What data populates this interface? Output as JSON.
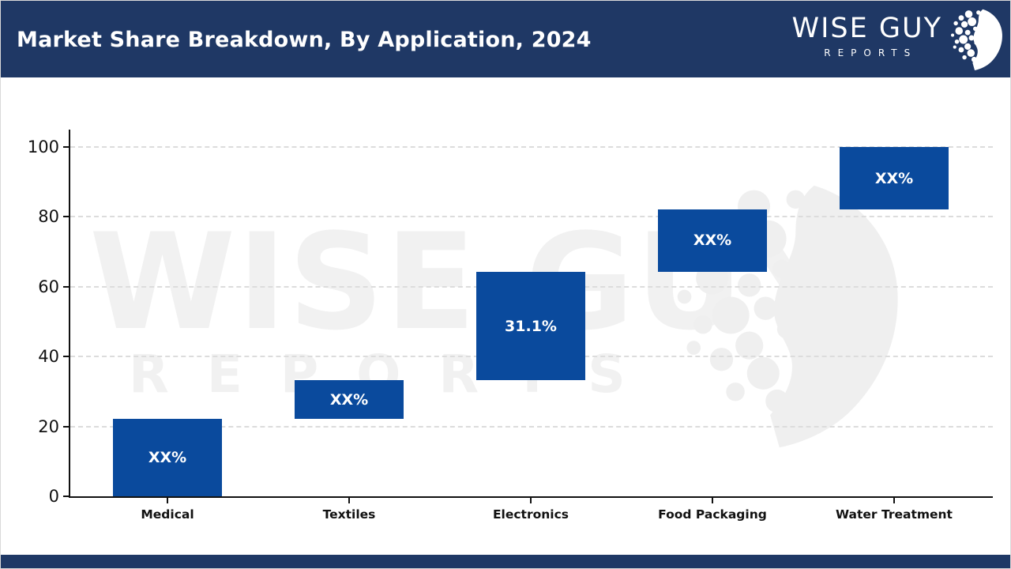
{
  "header": {
    "title": "Market Share Breakdown, By Application, 2024",
    "logo": {
      "line1": "WISE GUY",
      "line2": "REPORTS"
    }
  },
  "watermark": {
    "line1": "WISE GUY",
    "line2": "REPORTS"
  },
  "chart_data": {
    "type": "bar",
    "subtype": "floating-segment-waterfall",
    "title": "Market Share Breakdown, By Application, 2024",
    "categories": [
      "Medical",
      "Textiles",
      "Electronics",
      "Food Packaging",
      "Water Treatment"
    ],
    "segments": [
      {
        "category": "Medical",
        "start": 0,
        "end": 22.2,
        "label": "XX%"
      },
      {
        "category": "Textiles",
        "start": 22.2,
        "end": 33.2,
        "label": "XX%"
      },
      {
        "category": "Electronics",
        "start": 33.2,
        "end": 64.3,
        "label": "31.1%"
      },
      {
        "category": "Food Packaging",
        "start": 64.3,
        "end": 82.1,
        "label": "XX%"
      },
      {
        "category": "Water Treatment",
        "start": 82.1,
        "end": 100,
        "label": "XX%"
      }
    ],
    "yticks": [
      0,
      20,
      40,
      60,
      80,
      100
    ],
    "ylim": [
      0,
      105
    ],
    "xlabel": "",
    "ylabel": "",
    "grid": "horizontal-dashed",
    "legend": "none",
    "bar_color": "#0a4a9d",
    "bar_label_color": "#ffffff",
    "axis_color": "#111111",
    "header_bg": "#1f3865",
    "footer_bg": "#1f3865",
    "watermark_color": "#f1f1f1",
    "background": "#ffffff"
  }
}
